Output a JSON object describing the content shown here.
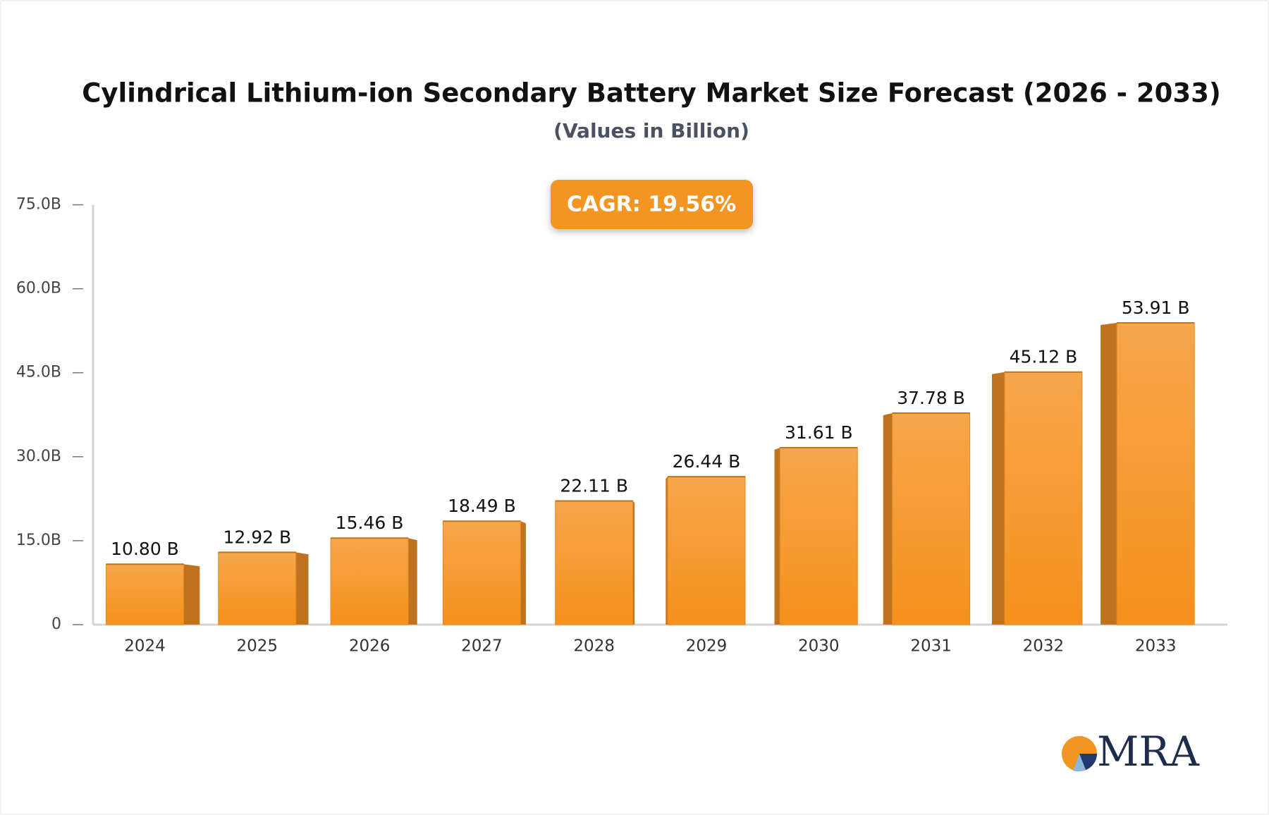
{
  "chart_data": {
    "type": "bar",
    "title": "Cylindrical Lithium-ion Secondary Battery Market Size Forecast (2026 - 2033)",
    "subtitle": "(Values in Billion)",
    "annotation": "CAGR: 19.56%",
    "categories": [
      "2024",
      "2025",
      "2026",
      "2027",
      "2028",
      "2029",
      "2030",
      "2031",
      "2032",
      "2033"
    ],
    "values": [
      10.8,
      12.92,
      15.46,
      18.49,
      22.11,
      26.44,
      31.61,
      37.78,
      45.12,
      53.91
    ],
    "value_labels": [
      "10.80 B",
      "12.92 B",
      "15.46 B",
      "18.49 B",
      "22.11 B",
      "26.44 B",
      "31.61 B",
      "37.78 B",
      "45.12 B",
      "53.91 B"
    ],
    "color": "#f6962a",
    "ylim": [
      0,
      75
    ],
    "yticks": [
      {
        "value": 0,
        "label": "0"
      },
      {
        "value": 15,
        "label": "15.0B"
      },
      {
        "value": 30,
        "label": "30.0B"
      },
      {
        "value": 45,
        "label": "45.0B"
      },
      {
        "value": 60,
        "label": "60.0B"
      },
      {
        "value": 75,
        "label": "75.0B"
      }
    ]
  },
  "logo": {
    "text": "MRA"
  }
}
